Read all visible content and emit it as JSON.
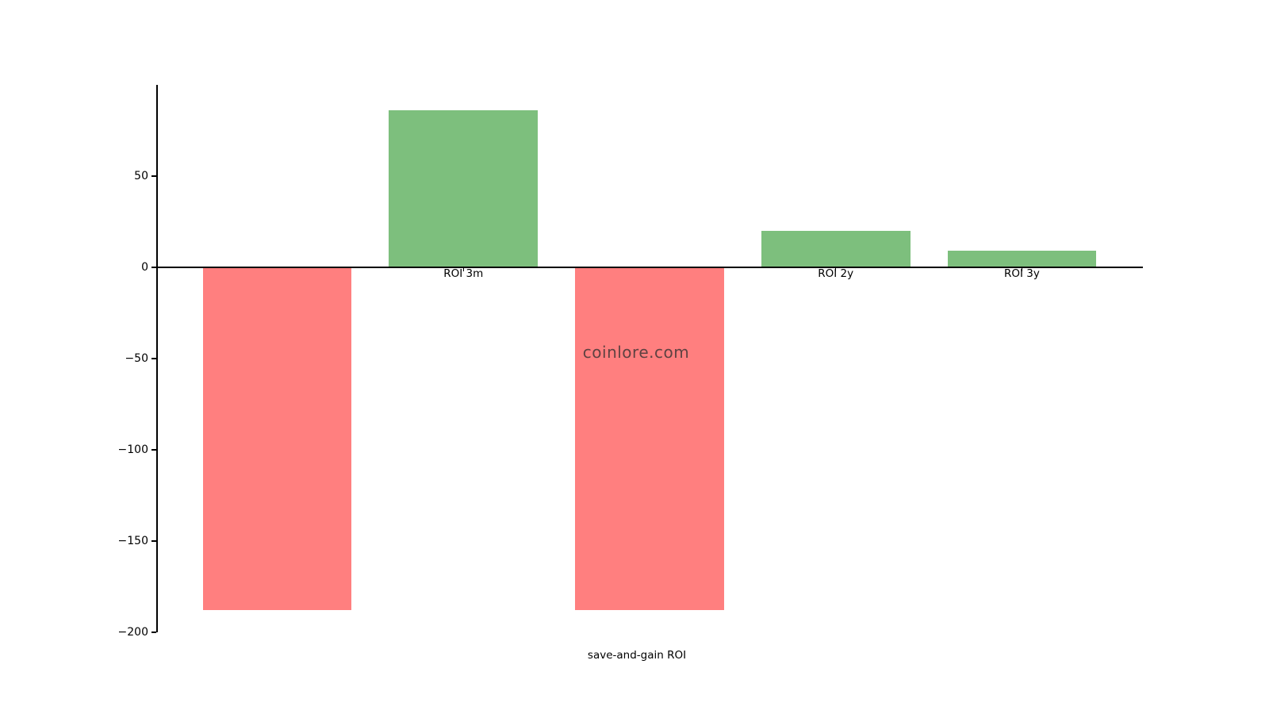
{
  "watermark": "coinlore.com",
  "chart_data": {
    "type": "bar",
    "title": "",
    "xlabel": "save-and-gain ROI",
    "ylabel": "",
    "categories": [
      "",
      "ROI 3m",
      "",
      "ROI 2y",
      "ROI 3y"
    ],
    "values": [
      -188,
      86,
      -188,
      20,
      9
    ],
    "bar_colors": [
      "#ff7f7f",
      "#7dbf7d",
      "#ff7f7f",
      "#7dbf7d",
      "#7dbf7d"
    ],
    "positive_color": "#7dbf7d",
    "negative_color": "#ff7f7f",
    "ylim": [
      -200,
      100
    ],
    "yticks": [
      50,
      0,
      -50,
      -100,
      -150,
      -200
    ],
    "xlim": [
      -0.65,
      4.65
    ],
    "bar_width": 0.8,
    "grid": false,
    "legend": "none",
    "axis_color": "#000000",
    "background": "#ffffff"
  }
}
